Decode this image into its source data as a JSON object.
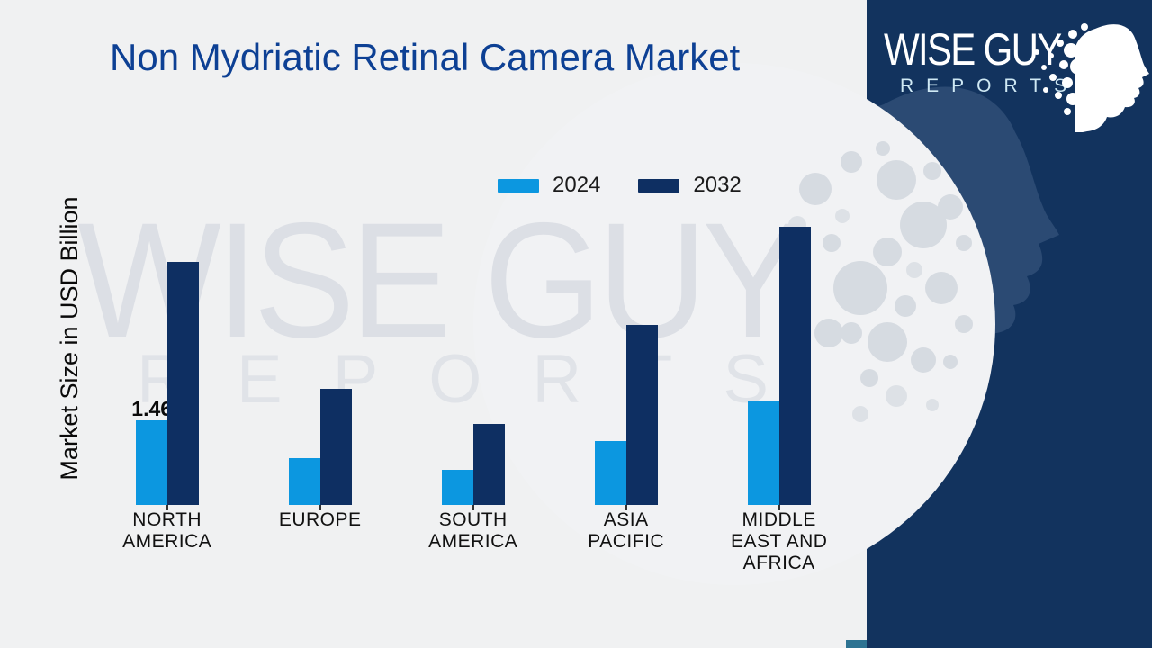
{
  "page": {
    "background_color": "#f0f1f2",
    "panel_color": "#12335e",
    "title_color": "#0d4094"
  },
  "logo": {
    "name": "WISE GUY",
    "sub": "REPORTS"
  },
  "watermark": {
    "name": "WISE GUY",
    "sub": "REPORTS"
  },
  "chart_data": {
    "type": "bar",
    "title": "Non Mydriatic Retinal Camera Market",
    "xlabel": "",
    "ylabel": "Market Size in USD Billion",
    "categories": [
      "NORTH AMERICA",
      "EUROPE",
      "SOUTH AMERICA",
      "ASIA PACIFIC",
      "MIDDLE EAST AND AFRICA"
    ],
    "series": [
      {
        "name": "2024",
        "color": "#0c97e0",
        "values": [
          1.46,
          0.8,
          0.6,
          1.1,
          1.8
        ]
      },
      {
        "name": "2032",
        "color": "#0e2f62",
        "values": [
          4.2,
          2.0,
          1.4,
          3.1,
          4.8
        ]
      }
    ],
    "annotations": [
      {
        "series": "2024",
        "category": "NORTH AMERICA",
        "text": "1.46"
      }
    ],
    "legend_position": "top-center",
    "grid": false,
    "y_axis_ticks_visible": false,
    "ylim": [
      0,
      5
    ]
  }
}
